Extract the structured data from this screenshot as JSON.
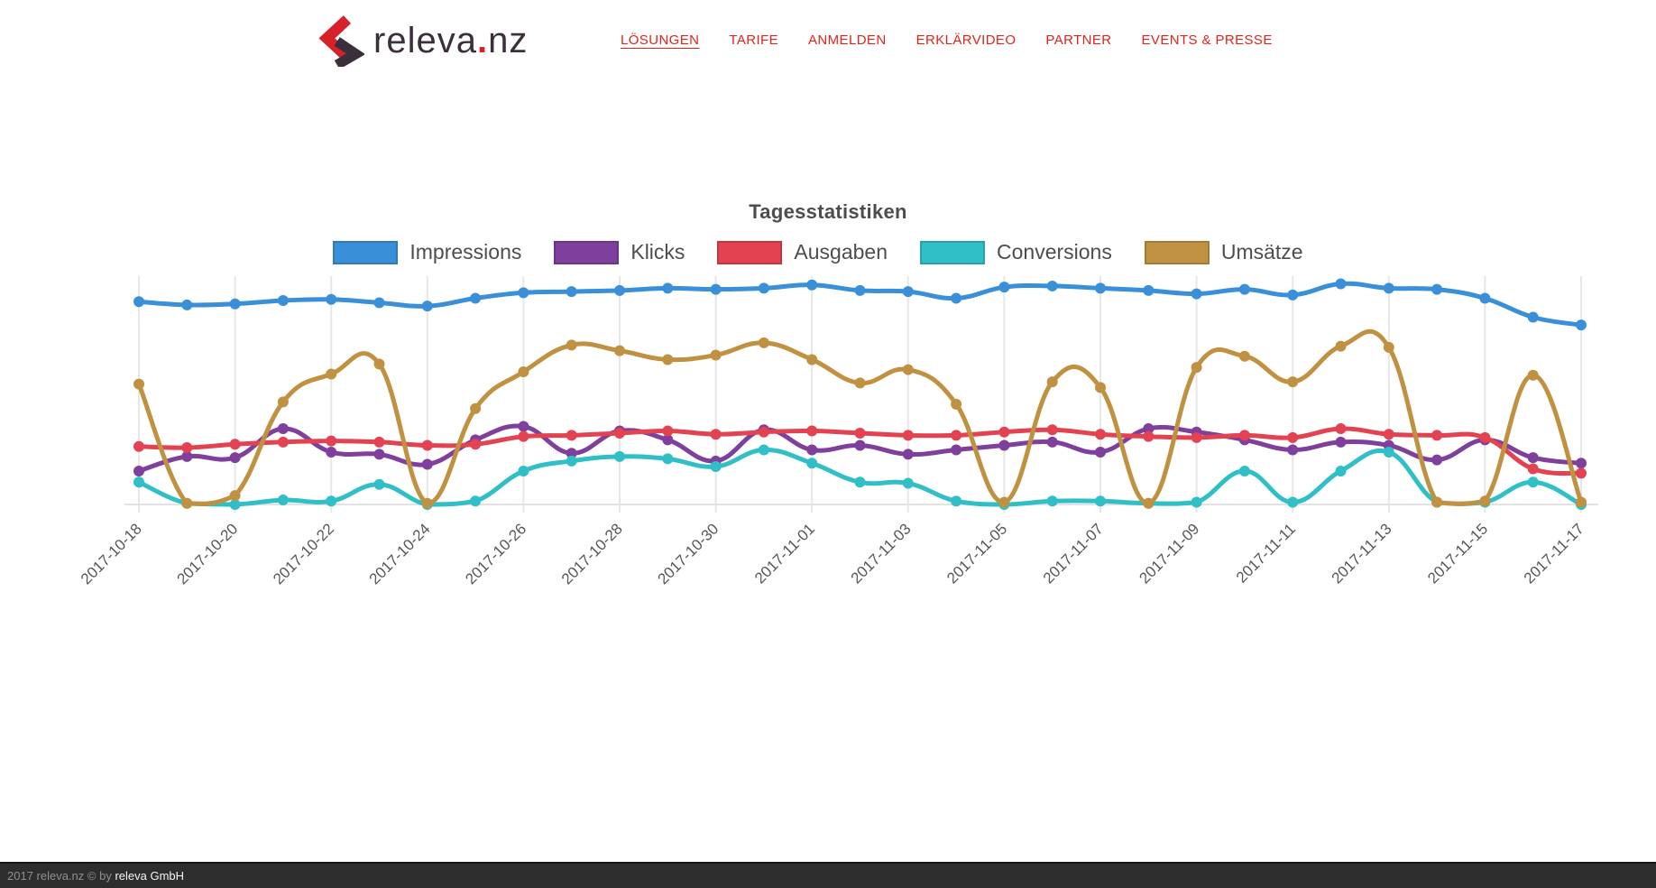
{
  "brand": {
    "accent_red": "#d6202a",
    "dark": "#3a2f3a",
    "nav_red": "#e2231a"
  },
  "header": {
    "logo": {
      "text_main": "releva",
      "text_dot": ".",
      "text_suffix": "nz"
    },
    "nav": [
      {
        "label": "LÖSUNGEN",
        "active": true
      },
      {
        "label": "TARIFE",
        "active": false
      },
      {
        "label": "ANMELDEN",
        "active": false
      },
      {
        "label": "ERKLÄRVIDEO",
        "active": false
      },
      {
        "label": "PARTNER",
        "active": false
      },
      {
        "label": "EVENTS & PRESSE",
        "active": false
      }
    ]
  },
  "chart_data": {
    "type": "line",
    "title": "Tagesstatistiken",
    "xlabel": "",
    "ylabel": "",
    "y_axis_visible": false,
    "grid": "vertical-only",
    "legend_position": "top",
    "point_style": "circle",
    "line_smoothing": true,
    "ylim": [
      0,
      100
    ],
    "x": [
      "2017-10-18",
      "2017-10-19",
      "2017-10-20",
      "2017-10-21",
      "2017-10-22",
      "2017-10-23",
      "2017-10-24",
      "2017-10-25",
      "2017-10-26",
      "2017-10-27",
      "2017-10-28",
      "2017-10-29",
      "2017-10-30",
      "2017-10-31",
      "2017-11-01",
      "2017-11-02",
      "2017-11-03",
      "2017-11-04",
      "2017-11-05",
      "2017-11-06",
      "2017-11-07",
      "2017-11-08",
      "2017-11-09",
      "2017-11-10",
      "2017-11-11",
      "2017-11-12",
      "2017-11-13",
      "2017-11-14",
      "2017-11-15",
      "2017-11-16",
      "2017-11-17"
    ],
    "x_tick_labels": [
      "2017-10-18",
      "2017-10-20",
      "2017-10-22",
      "2017-10-24",
      "2017-10-26",
      "2017-10-28",
      "2017-10-30",
      "2017-11-01",
      "2017-11-03",
      "2017-11-05",
      "2017-11-07",
      "2017-11-09",
      "2017-11-11",
      "2017-11-13",
      "2017-11-15",
      "2017-11-17"
    ],
    "series": [
      {
        "name": "Impressions",
        "color": "#3a8fd9",
        "values": [
          91,
          89.5,
          90,
          91.5,
          92,
          90.5,
          89,
          92.5,
          95,
          95.5,
          96,
          97,
          96.5,
          97,
          98.5,
          96,
          95.5,
          92.5,
          97.5,
          98,
          97,
          96,
          94.5,
          96.5,
          94,
          99,
          97,
          96.5,
          92.5,
          84,
          80.5
        ]
      },
      {
        "name": "Klicks",
        "color": "#7e3f9d",
        "values": [
          15,
          21.5,
          21,
          34,
          23.5,
          22.5,
          18,
          29,
          35,
          23,
          33,
          29,
          19.5,
          33.5,
          24.5,
          26.5,
          22.5,
          24.5,
          26.5,
          28,
          23.5,
          34,
          32.5,
          29,
          24.5,
          28,
          26.5,
          20,
          29,
          21,
          18.5
        ]
      },
      {
        "name": "Ausgaben",
        "color": "#e34250",
        "values": [
          26,
          25.5,
          27,
          28,
          28.5,
          28,
          26.5,
          27,
          30.5,
          31,
          32,
          33,
          31.5,
          32.5,
          33,
          32,
          31,
          31,
          32.5,
          33.5,
          31.5,
          30.5,
          30,
          31,
          30,
          34,
          31.5,
          31,
          30,
          16,
          14
        ]
      },
      {
        "name": "Conversions",
        "color": "#30bfc6",
        "values": [
          10,
          0.5,
          0,
          2,
          1.5,
          9,
          0,
          1.5,
          15,
          19.5,
          21.5,
          20.5,
          17,
          24.5,
          18.5,
          10,
          9.5,
          1.5,
          0,
          1.5,
          1.5,
          0.5,
          1,
          15,
          1,
          15,
          23.5,
          1,
          1,
          10,
          0
        ]
      },
      {
        "name": "Umsätze",
        "color": "#bf9140",
        "values": [
          54,
          0.5,
          4,
          46,
          58.5,
          63,
          0.5,
          43,
          59.5,
          71.5,
          69,
          65,
          67,
          72.5,
          65,
          54.5,
          60.5,
          45,
          1,
          55,
          52.5,
          0.5,
          61.5,
          66.5,
          55,
          71,
          70.5,
          1,
          1.5,
          58,
          1
        ]
      }
    ]
  },
  "footer": {
    "copyright_prefix": "2017 releva.nz © by ",
    "company": "releva GmbH"
  }
}
